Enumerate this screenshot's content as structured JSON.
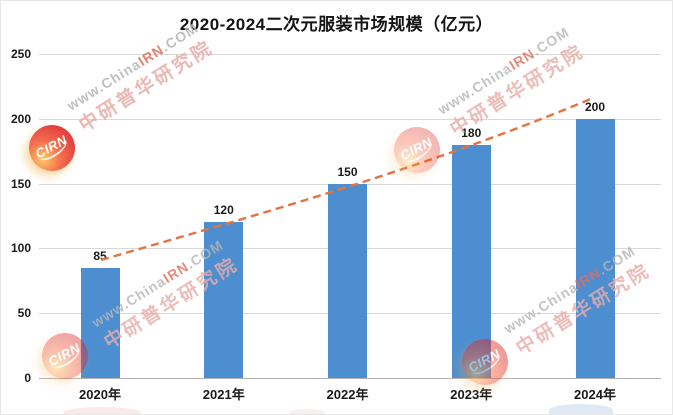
{
  "title": "2020-2024二次元服装市场规模（亿元）",
  "chart_data": {
    "type": "bar",
    "title": "2020-2024二次元服装市场规模（亿元）",
    "categories": [
      "2020年",
      "2021年",
      "2022年",
      "2023年",
      "2024年"
    ],
    "values": [
      85,
      120,
      150,
      180,
      200
    ],
    "data_labels": [
      "85",
      "120",
      "150",
      "180",
      "200"
    ],
    "ylim": [
      0,
      250
    ],
    "yticks": [
      0,
      50,
      100,
      150,
      200,
      250
    ],
    "grid": true,
    "legend": false,
    "xlabel": "",
    "ylabel": "",
    "bar_color": "#4d8ed1",
    "trendline": {
      "style": "dashed",
      "color": "#e4733f",
      "description": "rising dashed curve from first bar top to above last bar"
    }
  },
  "watermark": {
    "logo_text": "CIRN",
    "url_text_prefix": "www.China",
    "url_text_accent": "IRN",
    "url_text_suffix": ".COM",
    "cn_text": "中研普华研究院",
    "colors": {
      "logo_red": "#df241f",
      "url_gray": "#b5b5b5",
      "url_accent": "#e06c5a",
      "cn_pink": "#e8aca8"
    }
  },
  "colors": {
    "background": "#ffffff",
    "gridline": "#d9d9d9",
    "axis_line": "#b3b3b3",
    "text": "#1a1a1a"
  }
}
